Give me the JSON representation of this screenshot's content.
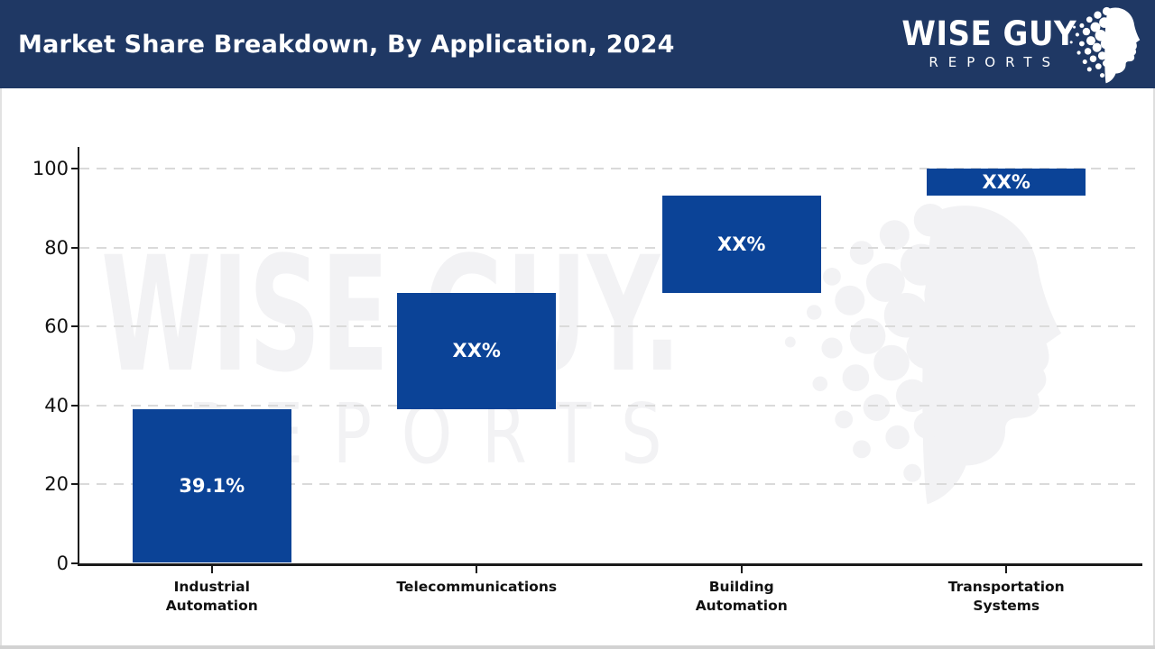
{
  "header": {
    "title": "Market Share Breakdown, By Application, 2024",
    "bg_color": "#1f3864",
    "logo": {
      "line1": "WISE GUY",
      "line2": "REPORTS"
    }
  },
  "watermark": {
    "line1": "WISE GUY.",
    "line2": "REPORTS"
  },
  "chart_data": {
    "type": "bar",
    "subtype": "waterfall",
    "title": "Market Share Breakdown, By Application, 2024",
    "categories": [
      "Industrial\nAutomation",
      "Telecommunications",
      "Building\nAutomation",
      "Transportation\nSystems"
    ],
    "segments": [
      {
        "category": "Industrial Automation",
        "start": 0,
        "end": 39.1,
        "label": "39.1%"
      },
      {
        "category": "Telecommunications",
        "start": 39.1,
        "end": 68.6,
        "label": "XX%"
      },
      {
        "category": "Building Automation",
        "start": 68.6,
        "end": 93.1,
        "label": "XX%"
      },
      {
        "category": "Transportation Systems",
        "start": 93.1,
        "end": 100,
        "label": "XX%"
      }
    ],
    "ylim": [
      0,
      100
    ],
    "yticks": [
      0,
      20,
      40,
      60,
      80,
      100
    ],
    "xlabel": "",
    "ylabel": "",
    "grid": "horizontal-dashed",
    "legend": "none",
    "bar_color": "#0b4397",
    "bar_label_color": "#ffffff",
    "grid_color": "#dadada",
    "axis_color": "#1a1a1a"
  }
}
